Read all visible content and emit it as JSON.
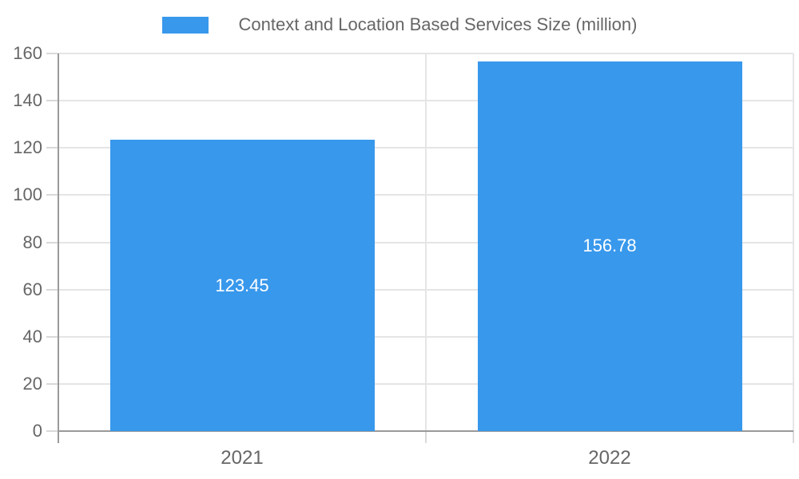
{
  "legend": {
    "position": "top-center",
    "items": [
      {
        "label": "Context and Location Based Services Size (million)",
        "color": "#3898ec"
      }
    ]
  },
  "chart_data": {
    "type": "bar",
    "title": "",
    "categories": [
      "2021",
      "2022"
    ],
    "series": [
      {
        "name": "Context and Location Based Services Size (million)",
        "values": [
          123.45,
          156.78
        ]
      }
    ],
    "value_labels": [
      "123.45",
      "156.78"
    ],
    "xlabel": "",
    "ylabel": "",
    "ylim": [
      0,
      160
    ],
    "ytick_step": 20,
    "yticks": [
      0,
      20,
      40,
      60,
      80,
      100,
      120,
      140,
      160
    ],
    "grid": true,
    "legend_position": "top",
    "bar_color": "#3898ec",
    "value_label_color": "#ffffff",
    "axis_text_color": "#666666",
    "gridline_color": "#e5e5e5",
    "axis_line_color": "#9a9a9a"
  }
}
